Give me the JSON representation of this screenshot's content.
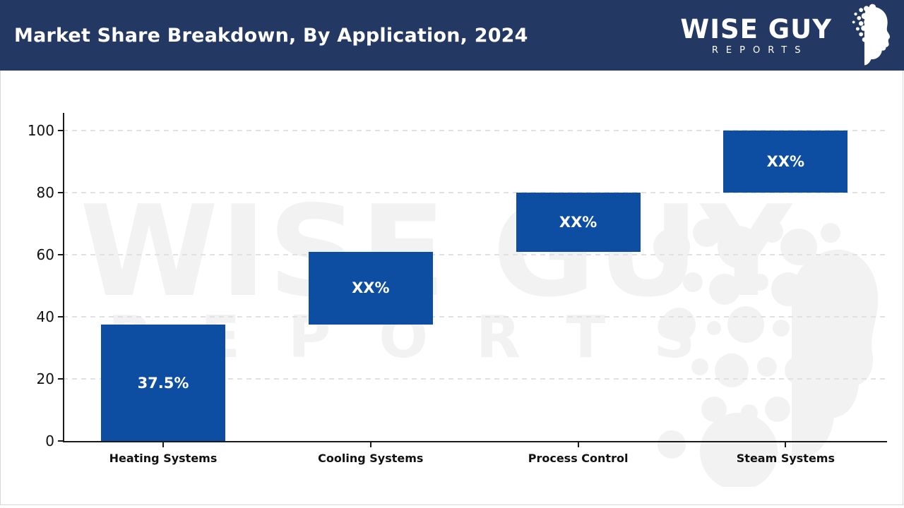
{
  "header": {
    "title": "Market Share Breakdown, By Application, 2024",
    "bg_color": "#233862",
    "logo": {
      "line1": "WISE GUY",
      "line2": "REPORTS"
    }
  },
  "watermark": {
    "line1": "WISE GUY",
    "line2": "REPORTS"
  },
  "chart_data": {
    "type": "bar",
    "variant": "waterfall",
    "title": "Market Share Breakdown, By Application, 2024",
    "categories": [
      "Heating Systems",
      "Cooling Systems",
      "Process Control",
      "Steam Systems"
    ],
    "segments": [
      {
        "category": "Heating Systems",
        "start": 0,
        "end": 37.5,
        "label": "37.5%"
      },
      {
        "category": "Cooling Systems",
        "start": 37.5,
        "end": 61,
        "label": "XX%"
      },
      {
        "category": "Process Control",
        "start": 61,
        "end": 80,
        "label": "XX%"
      },
      {
        "category": "Steam Systems",
        "start": 80,
        "end": 100,
        "label": "XX%"
      }
    ],
    "xlabel": "",
    "ylabel": "",
    "ylim": [
      0,
      100
    ],
    "yticks": [
      0,
      20,
      40,
      60,
      80,
      100
    ],
    "grid": "horizontal-dashed",
    "legend": "none",
    "bar_color": "#0d4da2",
    "bar_label_color": "#ffffff",
    "grid_color": "#e1e1e1",
    "axis_color": "#1a1a1a"
  }
}
